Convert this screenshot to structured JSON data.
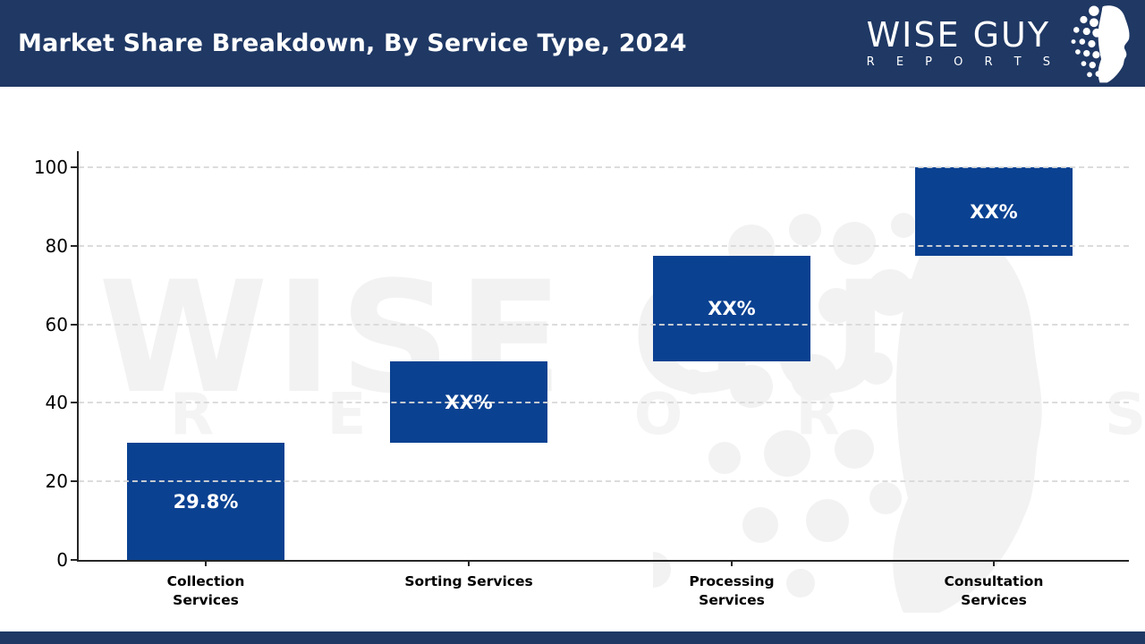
{
  "header": {
    "title": "Market Share Breakdown, By Service Type, 2024",
    "logo_line1": "WISE GUY",
    "logo_line2": "R E P O R T S"
  },
  "watermark": {
    "line1": "WISE GUY",
    "line2": "R E P O R T S"
  },
  "colors": {
    "header_bg": "#1f3864",
    "bar": "#0a4191",
    "bar_label": "#ffffff",
    "axis": "#262626",
    "grid": "#d9d9d9",
    "watermark": "#f2f2f2"
  },
  "chart_data": {
    "type": "bar",
    "subtype": "waterfall",
    "title": "Market Share Breakdown, By Service Type, 2024",
    "categories": [
      [
        "Collection",
        "Services"
      ],
      [
        "Sorting Services"
      ],
      [
        "Processing",
        "Services"
      ],
      [
        "Consultation",
        "Services"
      ]
    ],
    "segments": [
      {
        "name": "Collection Services",
        "base": 0,
        "top": 29.8,
        "label": "29.8%"
      },
      {
        "name": "Sorting Services",
        "base": 29.8,
        "top": 50.5,
        "label": "XX%"
      },
      {
        "name": "Processing Services",
        "base": 50.5,
        "top": 77.4,
        "label": "XX%"
      },
      {
        "name": "Consultation Services",
        "base": 77.4,
        "top": 100,
        "label": "XX%"
      }
    ],
    "ylim": [
      0,
      100
    ],
    "yticks": [
      0,
      20,
      40,
      60,
      80,
      100
    ],
    "grid": "horizontal-dashed",
    "legend": false
  }
}
